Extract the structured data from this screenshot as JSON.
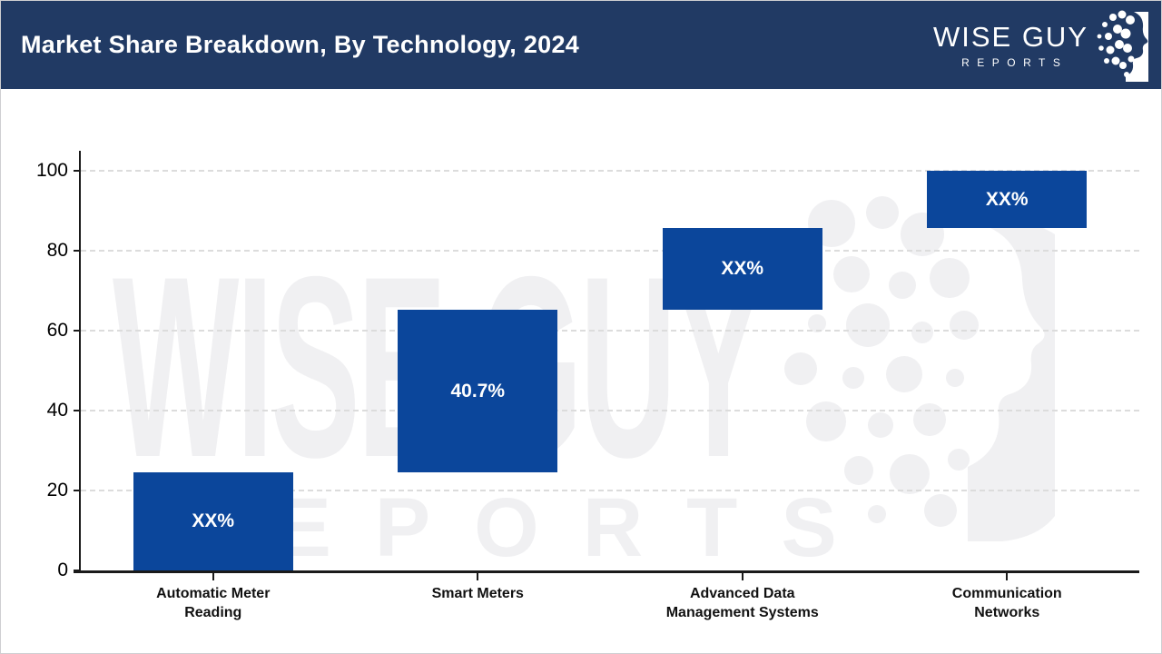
{
  "header": {
    "title": "Market Share Breakdown, By Technology, 2024",
    "bg_color": "#213a64",
    "logo": {
      "line1": "WISE GUY",
      "line2": "REPORTS"
    }
  },
  "watermark": {
    "line1": "WISE GUY",
    "line2": "REPORTS"
  },
  "chart_data": {
    "type": "bar",
    "variant": "waterfall-floating-bars",
    "title": "Market Share Breakdown, By Technology, 2024",
    "categories": [
      "Automatic Meter Reading",
      "Smart Meters",
      "Advanced Data Management Systems",
      "Communication Networks"
    ],
    "category_display": [
      "Automatic Meter\nReading",
      "Smart Meters",
      "Advanced Data\nManagement Systems",
      "Communication\nNetworks"
    ],
    "bars": [
      {
        "label": "XX%",
        "start": 0,
        "end": 24.5
      },
      {
        "label": "40.7%",
        "start": 24.5,
        "end": 65.2
      },
      {
        "label": "XX%",
        "start": 65.2,
        "end": 85.6
      },
      {
        "label": "XX%",
        "start": 85.6,
        "end": 100
      }
    ],
    "yticks": [
      0,
      20,
      40,
      60,
      80,
      100
    ],
    "ylim": [
      0,
      105
    ],
    "xlabel": "",
    "ylabel": "",
    "grid": true,
    "legend": null,
    "bar_color": "#0b469b",
    "grid_color": "#dcdcdc",
    "axis_color": "#1a1a1a"
  }
}
